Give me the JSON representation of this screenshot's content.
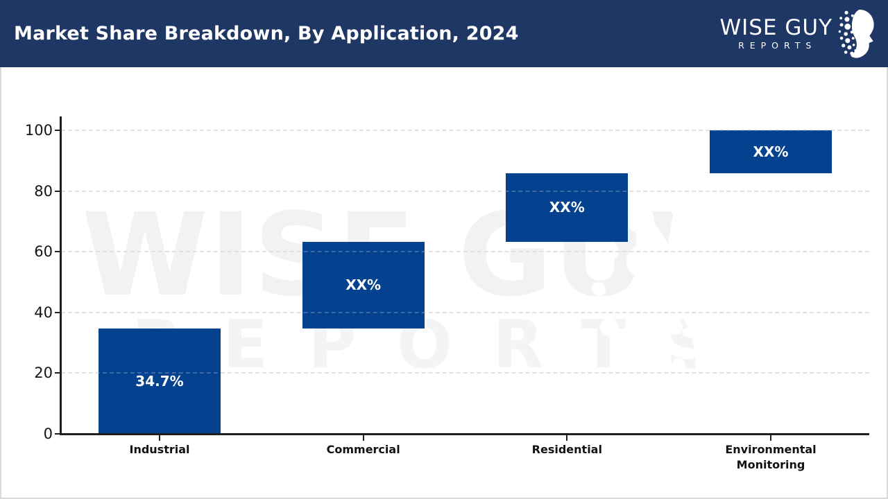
{
  "header": {
    "title": "Market Share Breakdown, By Application, 2024",
    "logo": {
      "line1": "WISE GUY",
      "line2": "REPORTS"
    }
  },
  "watermark": {
    "line1": "WISE GUY",
    "line2": "REPORTS"
  },
  "chart_data": {
    "type": "bar",
    "subtype": "waterfall",
    "title": "Market Share Breakdown, By Application, 2024",
    "xlabel": "",
    "ylabel": "",
    "categories": [
      "Industrial",
      "Commercial",
      "Residential",
      "Environmental Monitoring"
    ],
    "bars": [
      {
        "category": "Industrial",
        "label": "34.7%",
        "start": 0,
        "end": 34.7
      },
      {
        "category": "Commercial",
        "label": "XX%",
        "start": 34.7,
        "end": 63.3
      },
      {
        "category": "Residential",
        "label": "XX%",
        "start": 63.3,
        "end": 85.8
      },
      {
        "category": "Environmental Monitoring",
        "label": "XX%",
        "start": 85.8,
        "end": 100
      }
    ],
    "yticks": [
      0,
      20,
      40,
      60,
      80,
      100
    ],
    "ylim": [
      0,
      104
    ],
    "grid": "horizontal dashed",
    "legend": "none",
    "colors": {
      "bar": "#04418f",
      "bar_label": "#ffffff",
      "grid": "#d9d9d9",
      "axis": "#1f1f1f",
      "header_bg": "#1e3765",
      "header_text": "#ffffff",
      "watermark": "#f2f2f4"
    }
  }
}
